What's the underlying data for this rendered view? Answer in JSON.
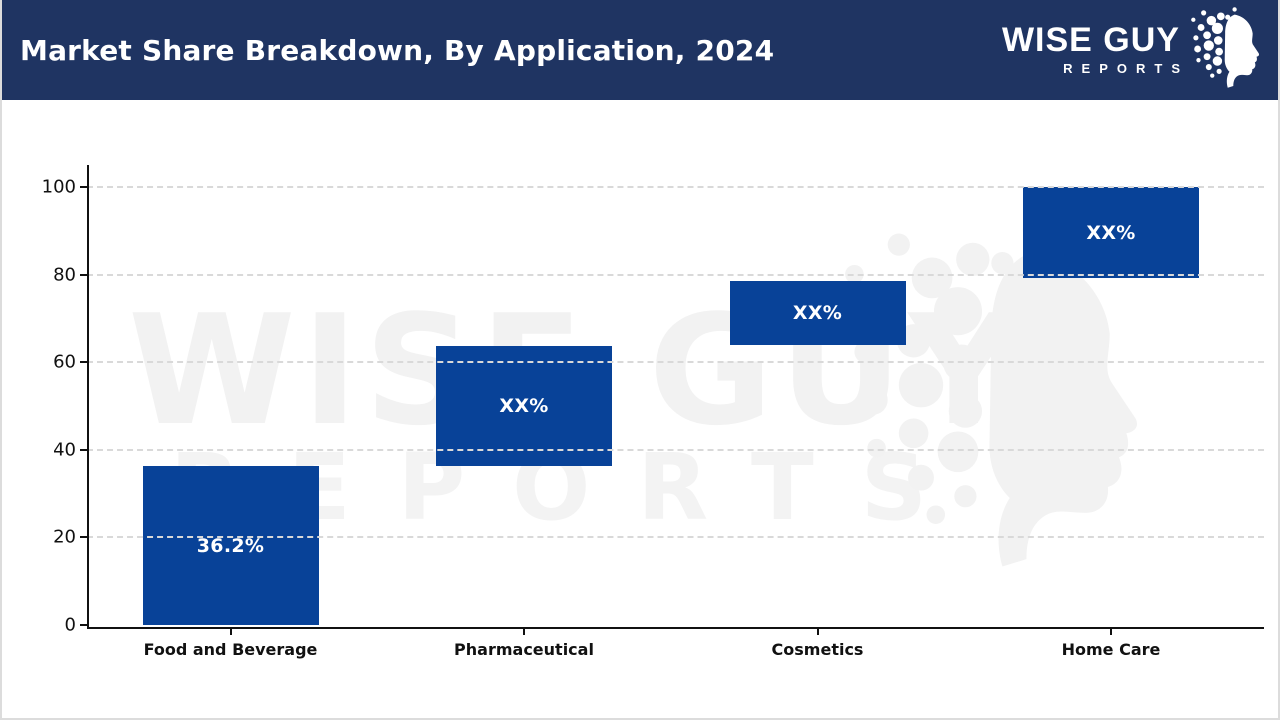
{
  "header": {
    "title": "Market Share Breakdown, By Application, 2024",
    "bg_color": "#1F3462",
    "logo": {
      "line1": "WISE GUY",
      "line2": "REPORTS"
    }
  },
  "watermark": {
    "line1": "WISE GUY",
    "line2": "REPORTS"
  },
  "chart_data": {
    "type": "bar",
    "subtype": "waterfall-style stacked segments, one per category",
    "title": "Market Share Breakdown, By Application, 2024",
    "categories": [
      "Food and Beverage",
      "Pharmaceutical",
      "Cosmetics",
      "Home Care"
    ],
    "segments": [
      {
        "category": "Food and Beverage",
        "start": 0,
        "end": 36.2,
        "label": "36.2%"
      },
      {
        "category": "Pharmaceutical",
        "start": 36.2,
        "end": 63.8,
        "label": "XX%"
      },
      {
        "category": "Cosmetics",
        "start": 63.9,
        "end": 78.6,
        "label": "XX%"
      },
      {
        "category": "Home Care",
        "start": 79.2,
        "end": 100,
        "label": "XX%"
      }
    ],
    "yticks": [
      0,
      20,
      40,
      60,
      80,
      100
    ],
    "ylim": [
      0,
      104
    ],
    "xlabel": "",
    "ylabel": "",
    "grid": "horizontal dashed",
    "legend": false,
    "bar_color": "#084298",
    "axis_color": "#111111",
    "gridline_color": "#D9D9D9"
  }
}
